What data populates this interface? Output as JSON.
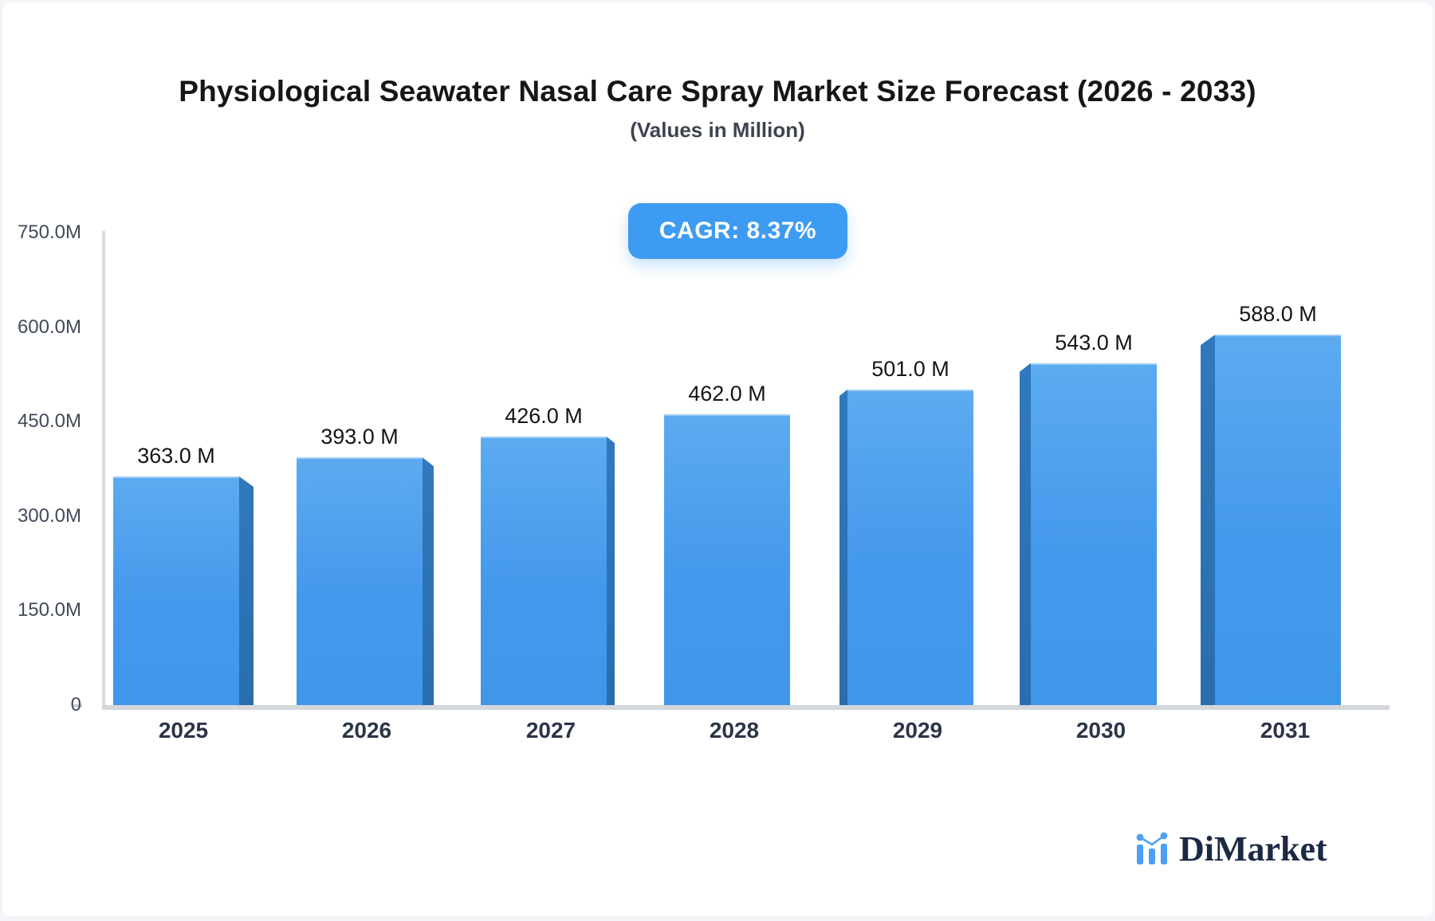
{
  "page": {
    "title": "Physiological Seawater Nasal Care Spray Market Size Forecast (2026 - 2033)",
    "subtitle": "(Values in Million)",
    "cagr_badge": "CAGR: 8.37%"
  },
  "chart_data": {
    "type": "bar",
    "title": "Physiological Seawater Nasal Care Spray Market Size Forecast (2026 - 2033)",
    "subtitle": "(Values in Million)",
    "unit": "Million",
    "categories": [
      "2025",
      "2026",
      "2027",
      "2028",
      "2029",
      "2030",
      "2031"
    ],
    "values": [
      363.0,
      393.0,
      426.0,
      462.0,
      501.0,
      543.0,
      588.0
    ],
    "value_labels": [
      "363.0 M",
      "393.0 M",
      "426.0 M",
      "462.0 M",
      "501.0 M",
      "543.0 M",
      "588.0 M"
    ],
    "cagr": "8.37%",
    "ylabel": "",
    "xlabel": "",
    "ylim": [
      0,
      750
    ],
    "yticks": [
      {
        "value": 750,
        "label": "750.0M"
      },
      {
        "value": 600,
        "label": "600.0M"
      },
      {
        "value": 450,
        "label": "450.0M"
      },
      {
        "value": 300,
        "label": "300.0M"
      },
      {
        "value": 150,
        "label": "150.0M"
      },
      {
        "value": 0,
        "label": "0"
      }
    ],
    "grid": false,
    "legend": false,
    "bar_style": "3d-perspective",
    "colors": {
      "bar_face_top": "#5cabf0",
      "bar_face_bottom": "#3f97ea",
      "bar_side": "#2d73b5",
      "bar_top_highlight": "#9dcdf5",
      "axis": "#d8dade",
      "badge_background": "#3d9bf1",
      "badge_text": "#ffffff",
      "title_text": "#141619",
      "tick_text": "#414b57",
      "year_text": "#2b3547",
      "logo_text": "#1b2944",
      "logo_icon": "#4ba0f2"
    }
  },
  "branding": {
    "logo_text": "DiMarket",
    "logo_icon": "mini-bar-chart-icon"
  }
}
